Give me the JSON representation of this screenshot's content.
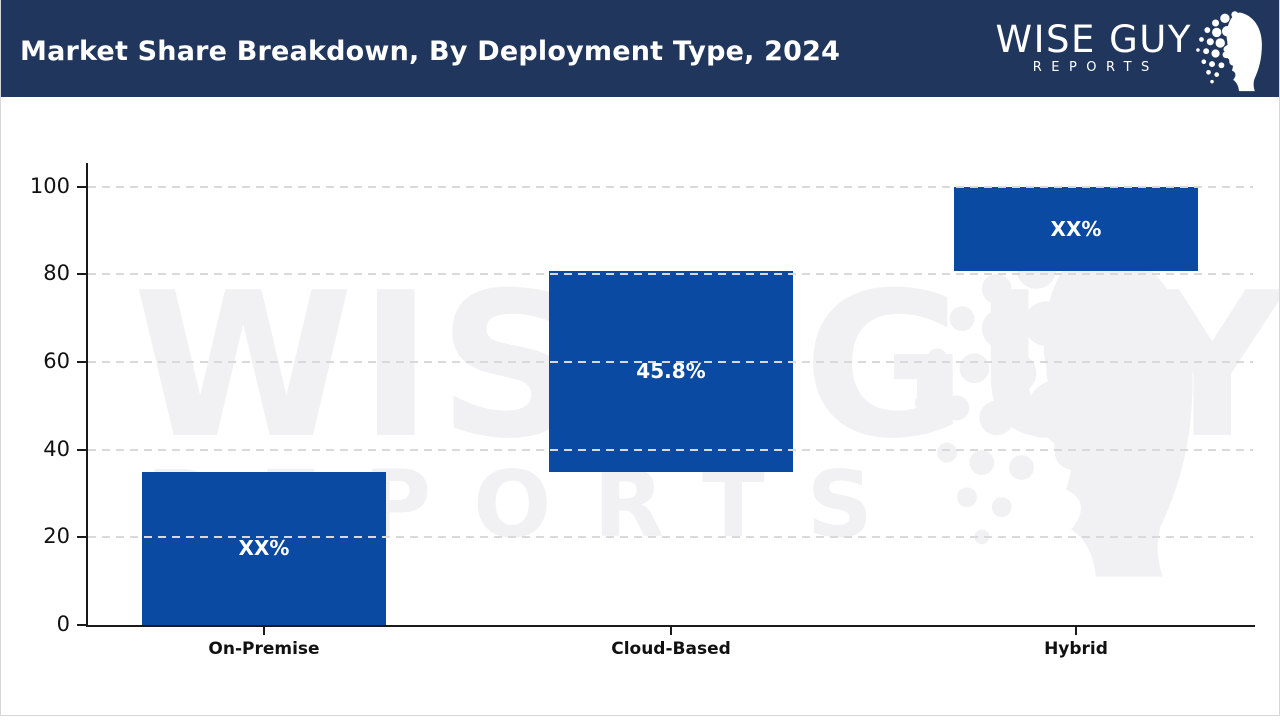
{
  "header": {
    "title": "Market Share Breakdown, By Deployment Type, 2024",
    "logo": {
      "line1": "WISE GUY",
      "line2": "REPORTS"
    }
  },
  "watermark": {
    "line1": "WISE GUY",
    "line2": "REPORTS"
  },
  "chart_data": {
    "type": "bar",
    "subtype": "floating-waterfall",
    "title": "Market Share Breakdown, By Deployment Type, 2024",
    "categories": [
      "On-Premise",
      "Cloud-Based",
      "Hybrid"
    ],
    "bars": [
      {
        "category": "On-Premise",
        "start": 0,
        "end": 35,
        "label": "XX%"
      },
      {
        "category": "Cloud-Based",
        "start": 35,
        "end": 80.8,
        "label": "45.8%"
      },
      {
        "category": "Hybrid",
        "start": 80.8,
        "end": 100,
        "label": "XX%"
      }
    ],
    "yticks": [
      0,
      20,
      40,
      60,
      80,
      100
    ],
    "ylim": [
      0,
      105.4
    ],
    "xlabel": "",
    "ylabel": "",
    "grid": "dashed-horizontal-over-bars",
    "legend": "none",
    "bar_color": "#0b4aa2"
  },
  "colors": {
    "header_bg": "#21365d",
    "bar": "#0b4aa2",
    "grid": "#d9d9d9",
    "axis": "#1a1a1a",
    "watermark": "#f1f1f3"
  }
}
